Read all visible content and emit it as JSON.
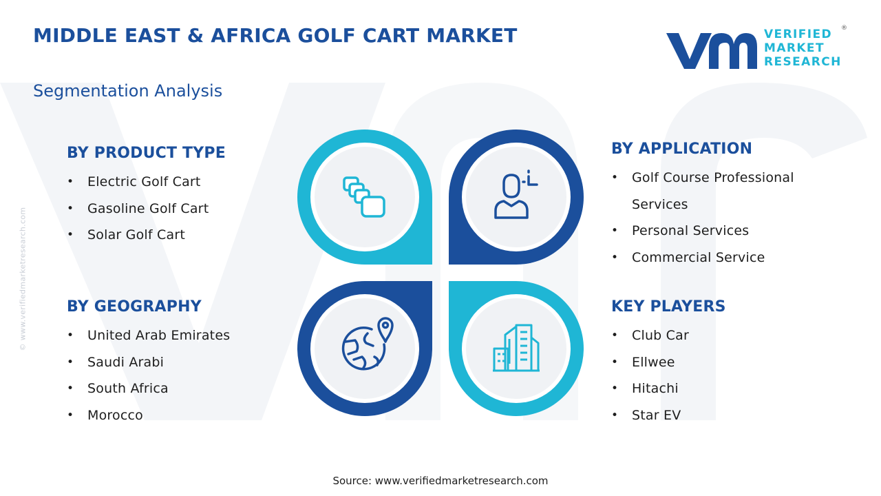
{
  "header": {
    "title": "MIDDLE EAST & AFRICA GOLF CART MARKET",
    "subtitle": "Segmentation Analysis"
  },
  "logo": {
    "line1": "VERIFIED",
    "line2": "MARKET",
    "line3": "RESEARCH",
    "registered": "®"
  },
  "watermark_url": "© www.verifiedmarketresearch.com",
  "segments": {
    "product_type": {
      "heading": "BY PRODUCT TYPE",
      "items": [
        "Electric Golf Cart",
        "Gasoline Golf Cart",
        "Solar Golf Cart"
      ]
    },
    "application": {
      "heading": "BY APPLICATION",
      "items": [
        "Golf Course Professional Services",
        "Personal Services",
        "Commercial Service"
      ]
    },
    "geography": {
      "heading": "BY GEOGRAPHY",
      "items": [
        "United Arab Emirates",
        "Saudi Arabi",
        "South Africa",
        "Morocco"
      ]
    },
    "key_players": {
      "heading": "KEY PLAYERS",
      "items": [
        "Club Car",
        "Ellwee",
        "Hitachi",
        "Star EV"
      ]
    }
  },
  "icons": {
    "top_left": "stacked-blocks-icon",
    "top_right": "user-profile-icon",
    "bottom_left": "globe-location-icon",
    "bottom_right": "city-buildings-icon"
  },
  "colors": {
    "dark_blue": "#1b4f9c",
    "cyan": "#1fb6d5",
    "circle_fill": "#f0f2f5"
  },
  "source": "Source: www.verifiedmarketresearch.com"
}
